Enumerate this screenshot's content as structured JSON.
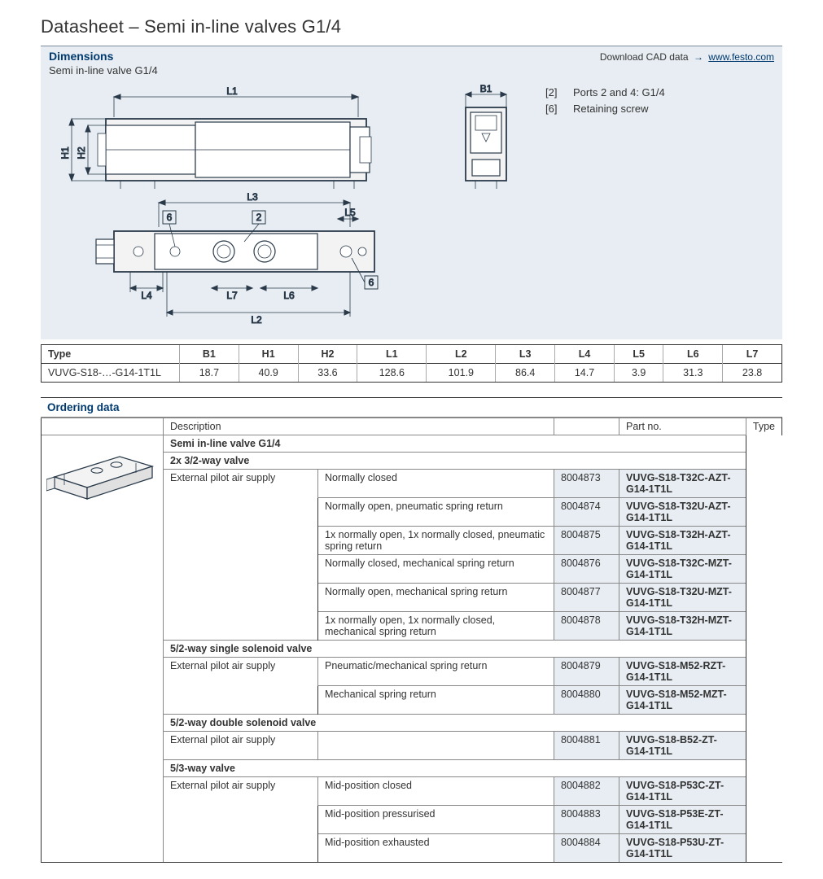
{
  "colors": {
    "panel_bg": "#e7edf2",
    "accent": "#003a6f",
    "line": "#2a3a4a",
    "border": "#333333",
    "light_border": "#888888"
  },
  "title": "Datasheet – Semi in-line valves G1/4",
  "dimensions_section": {
    "label": "Dimensions",
    "cad_text": "Download CAD data",
    "cad_link_label": "www.festo.com",
    "subtype": "Semi in-line valve G1/4",
    "legend": [
      {
        "tag": "[2]",
        "text": "Ports 2 and 4: G1/4"
      },
      {
        "tag": "[6]",
        "text": "Retaining screw"
      }
    ],
    "drawing_labels": [
      "L1",
      "L2",
      "L3",
      "L4",
      "L5",
      "L6",
      "L7",
      "H1",
      "H2",
      "B1"
    ],
    "callouts": [
      "6",
      "2",
      "6"
    ]
  },
  "dim_table": {
    "headers": [
      "Type",
      "B1",
      "H1",
      "H2",
      "L1",
      "L2",
      "L3",
      "L4",
      "L5",
      "L6",
      "L7"
    ],
    "rows": [
      [
        "VUVG-S18-…-G14-1T1L",
        "18.7",
        "40.9",
        "33.6",
        "128.6",
        "101.9",
        "86.4",
        "14.7",
        "3.9",
        "31.3",
        "23.8"
      ]
    ]
  },
  "ordering": {
    "title": "Ordering data",
    "header_row": [
      "",
      "Description",
      "",
      "Part no.",
      "Type"
    ],
    "section_header": "Semi in-line valve G1/4",
    "groups": [
      {
        "sub": "2x 3/2-way valve",
        "rows": [
          [
            "External pilot air supply",
            "Normally closed",
            "8004873",
            "VUVG-S18-T32C-AZT-G14-1T1L"
          ],
          [
            "",
            "Normally open, pneumatic spring return",
            "8004874",
            "VUVG-S18-T32U-AZT-G14-1T1L"
          ],
          [
            "",
            "1x normally open, 1x normally closed, pneumatic spring return",
            "8004875",
            "VUVG-S18-T32H-AZT-G14-1T1L"
          ],
          [
            "",
            "Normally closed, mechanical spring return",
            "8004876",
            "VUVG-S18-T32C-MZT-G14-1T1L"
          ],
          [
            "",
            "Normally open, mechanical spring return",
            "8004877",
            "VUVG-S18-T32U-MZT-G14-1T1L"
          ],
          [
            "",
            "1x normally open, 1x normally closed, mechanical spring return",
            "8004878",
            "VUVG-S18-T32H-MZT-G14-1T1L"
          ]
        ]
      },
      {
        "sub": "5/2-way single solenoid valve",
        "rows": [
          [
            "External pilot air supply",
            "Pneumatic/mechanical spring return",
            "8004879",
            "VUVG-S18-M52-RZT-G14-1T1L"
          ],
          [
            "",
            "Mechanical spring return",
            "8004880",
            "VUVG-S18-M52-MZT-G14-1T1L"
          ]
        ]
      },
      {
        "sub": "5/2-way double solenoid valve",
        "rows": [
          [
            "External pilot air supply",
            "",
            "8004881",
            "VUVG-S18-B52-ZT-G14-1T1L"
          ]
        ]
      },
      {
        "sub": "5/3-way valve",
        "rows": [
          [
            "External pilot air supply",
            "Mid-position closed",
            "8004882",
            "VUVG-S18-P53C-ZT-G14-1T1L"
          ],
          [
            "",
            "Mid-position pressurised",
            "8004883",
            "VUVG-S18-P53E-ZT-G14-1T1L"
          ],
          [
            "",
            "Mid-position exhausted",
            "8004884",
            "VUVG-S18-P53U-ZT-G14-1T1L"
          ]
        ]
      }
    ]
  }
}
